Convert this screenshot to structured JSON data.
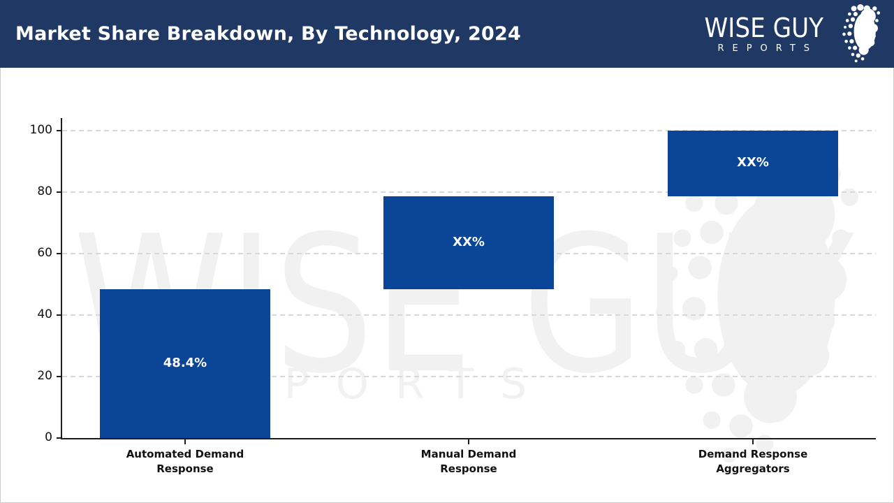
{
  "header": {
    "title": "Market Share Breakdown, By Technology, 2024",
    "logo": {
      "name": "WISE GUY",
      "subname": "REPORTS"
    }
  },
  "watermark": {
    "name": "WISE GUY",
    "subname": "REPORTS"
  },
  "colors": {
    "header_bg": "#1F3864",
    "bar": "#0A4598",
    "gridline": "#D8D8D8",
    "axis": "#1C1C1C",
    "text": "#111111",
    "bar_label": "#FFFFFF",
    "watermark": "#F1F1F1",
    "frame_border": "#CCCCCC"
  },
  "chart_data": {
    "type": "bar",
    "subtype": "waterfall",
    "title": "Market Share Breakdown, By Technology, 2024",
    "categories": [
      "Automated Demand\nResponse",
      "Manual Demand\nResponse",
      "Demand Response\nAggregators"
    ],
    "segments": [
      {
        "category": "Automated Demand Response",
        "start": 0,
        "end": 48.4,
        "label": "48.4%"
      },
      {
        "category": "Manual Demand Response",
        "start": 48.4,
        "end": 78.6,
        "label": "XX%"
      },
      {
        "category": "Demand Response Aggregators",
        "start": 78.6,
        "end": 100,
        "label": "XX%"
      }
    ],
    "ylim": [
      0,
      104
    ],
    "yticks": [
      0,
      20,
      40,
      60,
      80,
      100
    ],
    "xlabel": "",
    "ylabel": "",
    "grid": "horizontal-dashed",
    "legend": "none"
  }
}
